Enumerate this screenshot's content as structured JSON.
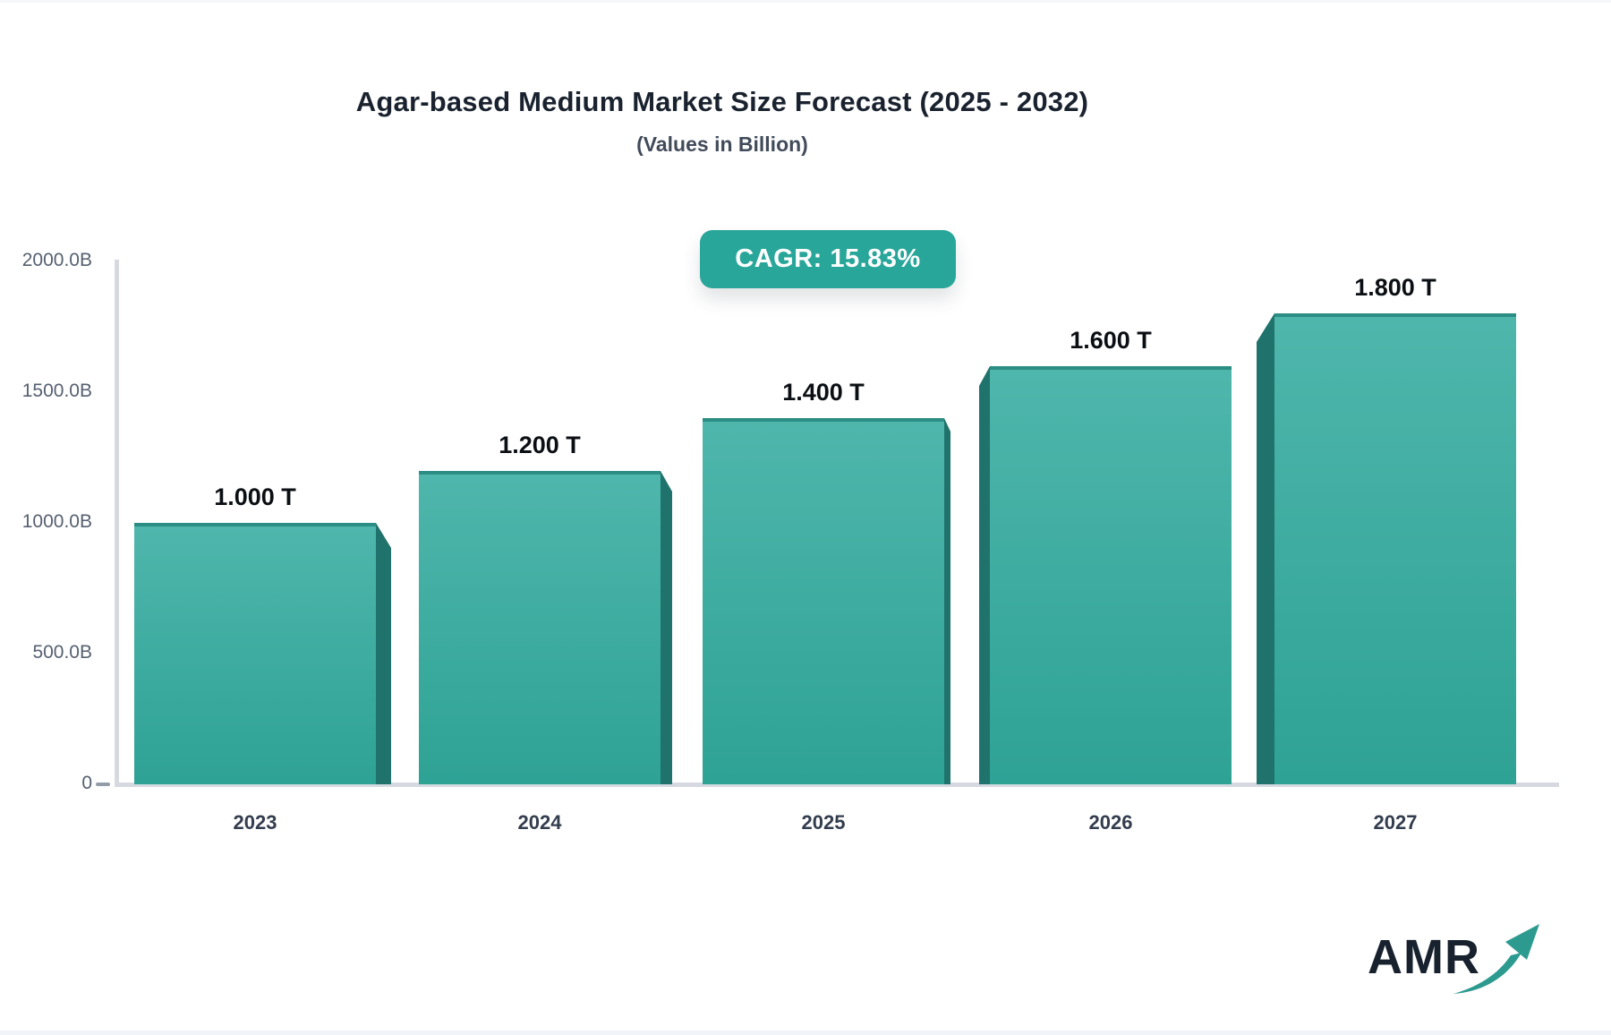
{
  "header": {
    "title": "Agar-based Medium Market Size Forecast (2025 - 2032)",
    "subtitle": "(Values in Billion)"
  },
  "badge": {
    "label": "CAGR: 15.83%",
    "bg": "#29a69a"
  },
  "chart_data": {
    "type": "bar",
    "title": "Agar-based Medium Market Size Forecast (2025 - 2032)",
    "subtitle": "(Values in Billion)",
    "categories": [
      "2023",
      "2024",
      "2025",
      "2026",
      "2027"
    ],
    "values": [
      1000,
      1200,
      1400,
      1600,
      1800
    ],
    "value_labels": [
      "1.000 T",
      "1.200 T",
      "1.400 T",
      "1.600 T",
      "1.800 T"
    ],
    "unit": "Billion",
    "xlabel": "",
    "ylabel": "",
    "ylim": [
      0,
      2000
    ],
    "yticks": [
      {
        "value": 2000,
        "label": "2000.0B"
      },
      {
        "value": 1500,
        "label": "1500.0B"
      },
      {
        "value": 1000,
        "label": "1000.0B"
      },
      {
        "value": 500,
        "label": "500.0B"
      },
      {
        "value": 0,
        "label": "0"
      }
    ],
    "colors": {
      "bar_top": "#4fb6ac",
      "bar_bottom": "#2ea295",
      "bar_top_line": "#2b8d84",
      "bar_side": "#20736c",
      "axis_line": "#d6dae0",
      "tick_text": "#566070"
    },
    "layout": {
      "grid": false,
      "legend": "none",
      "bar_3d_sides": [
        "right",
        "right",
        "right",
        "left",
        "left"
      ],
      "bar_3d_side_widths": [
        17,
        13,
        7,
        12,
        20
      ]
    }
  },
  "logo": {
    "text": "AMR",
    "arrow_color": "#2d9a90"
  }
}
